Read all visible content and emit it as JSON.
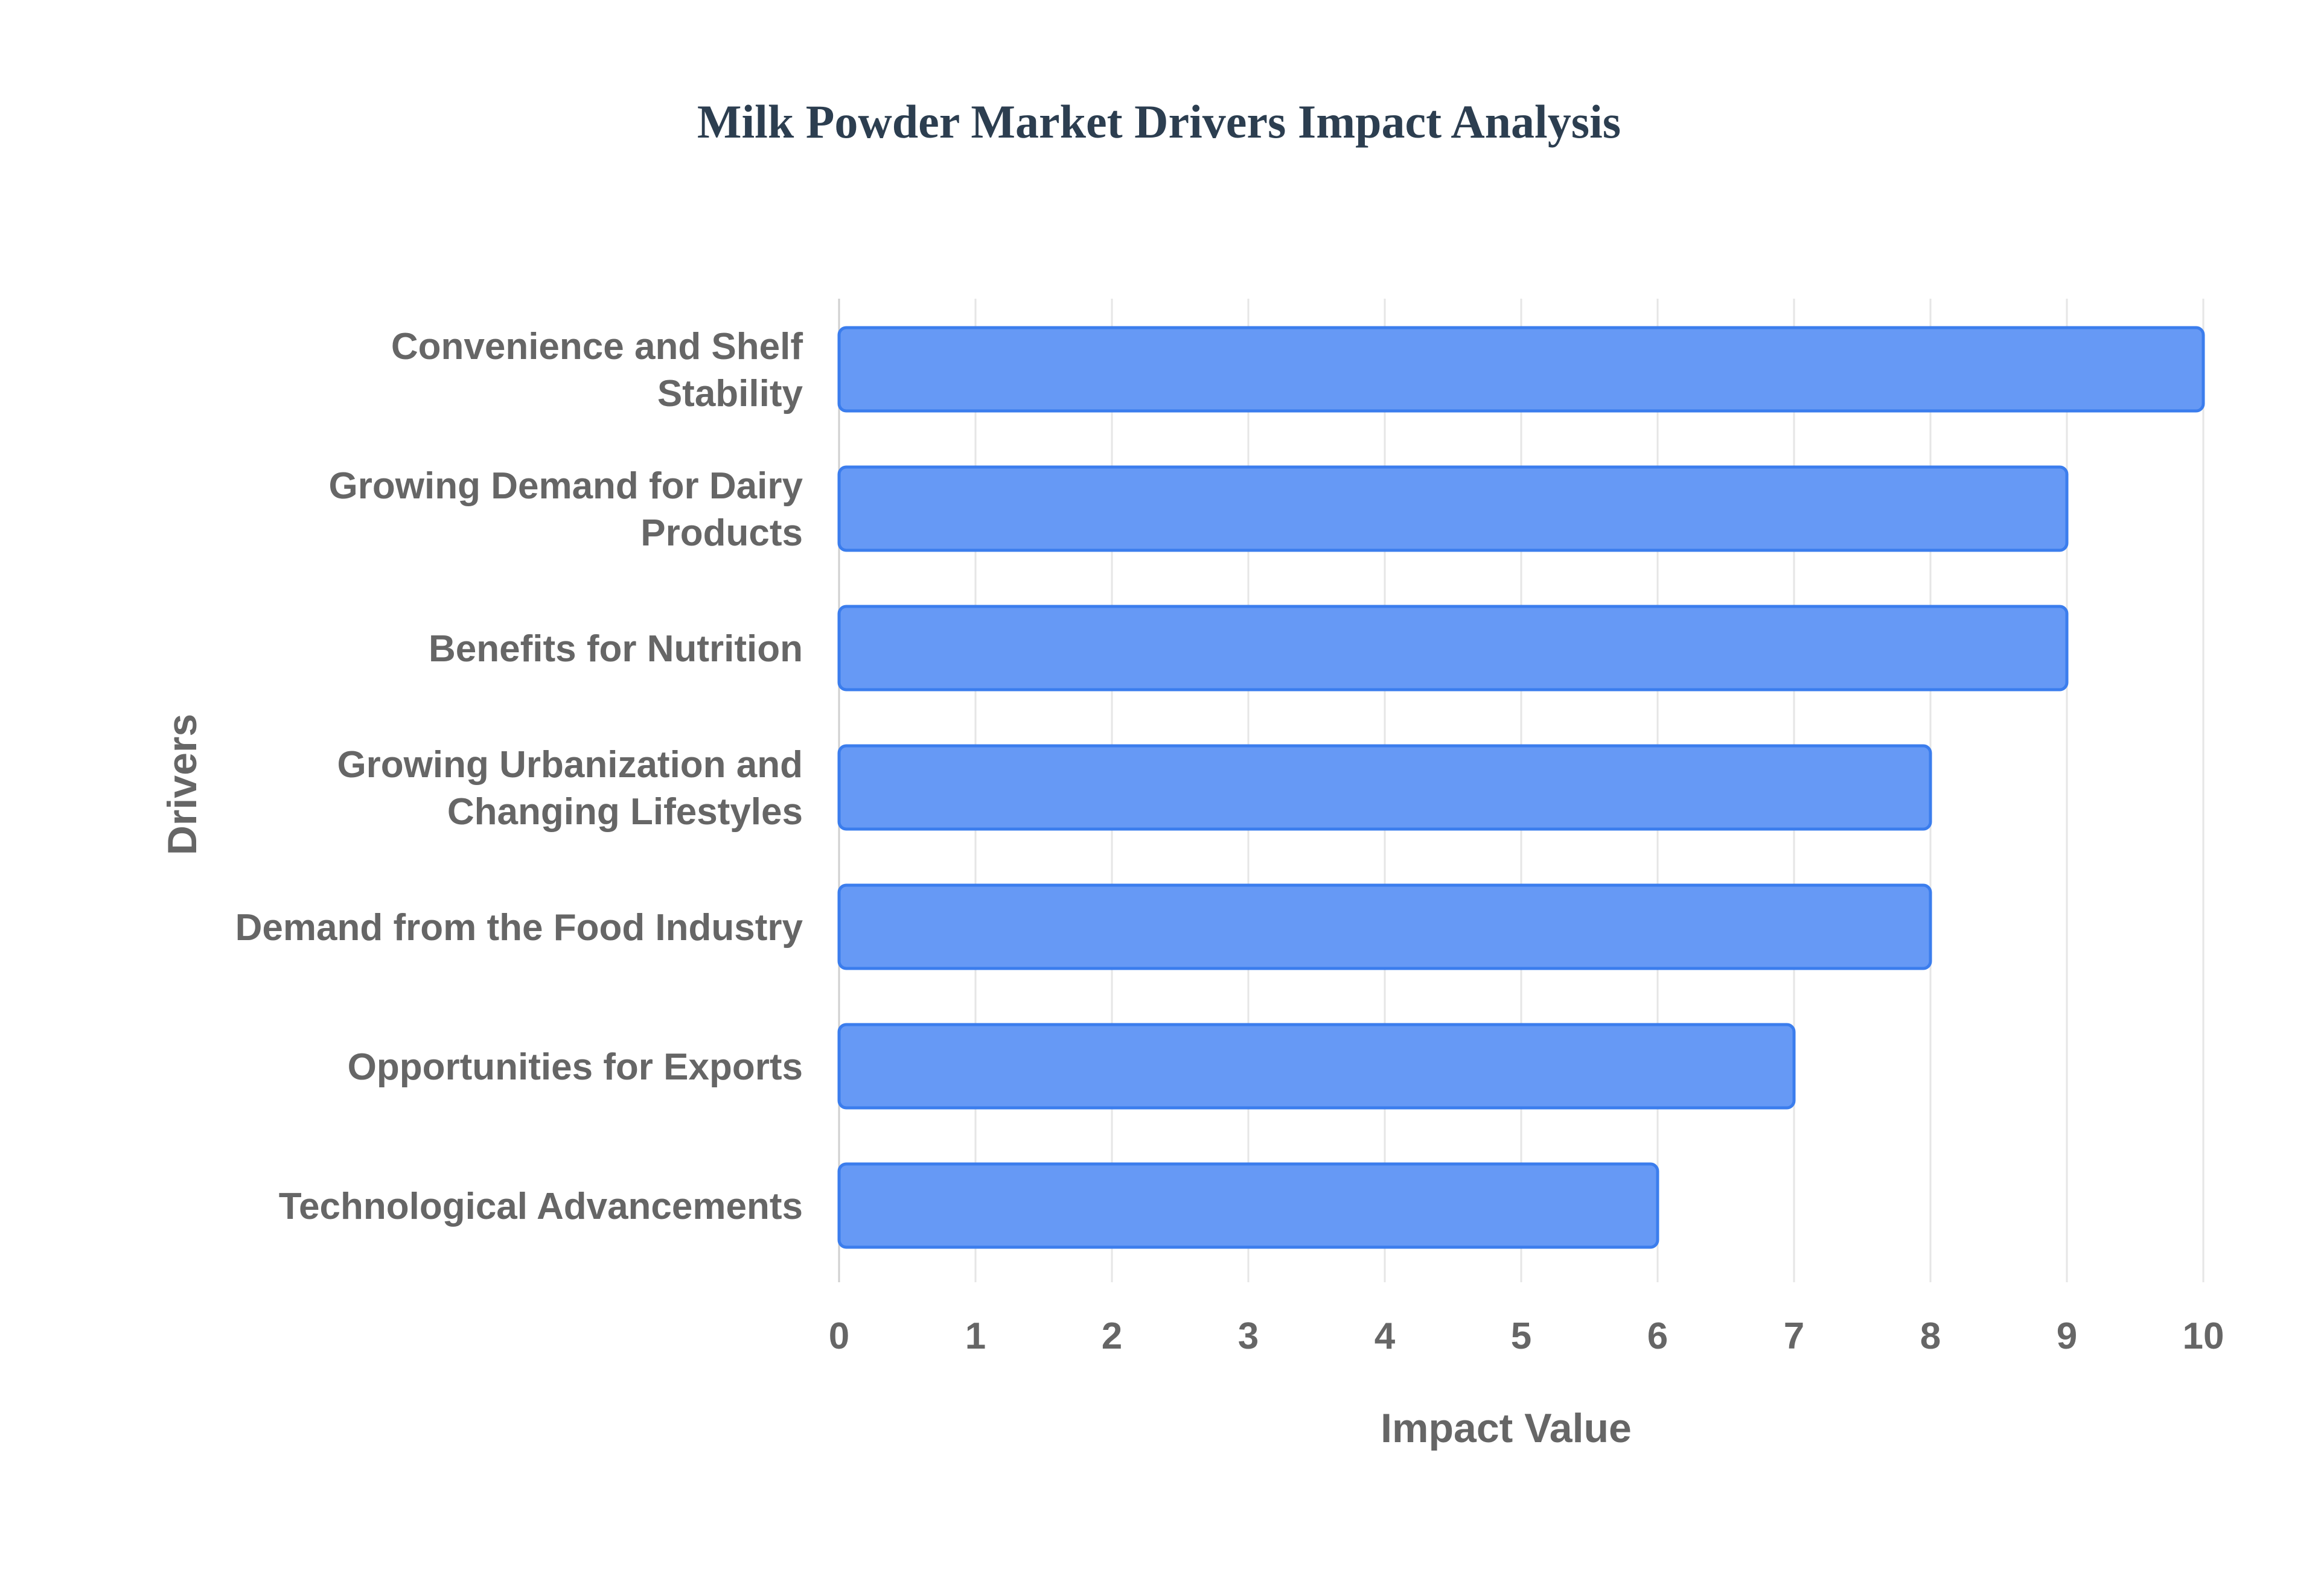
{
  "chart_data": {
    "type": "bar",
    "orientation": "horizontal",
    "title": "Milk Powder Market Drivers Impact Analysis",
    "xlabel": "Impact Value",
    "ylabel": "Drivers",
    "xlim": [
      0,
      10
    ],
    "x_ticks": [
      "0",
      "1",
      "2",
      "3",
      "4",
      "5",
      "6",
      "7",
      "8",
      "9",
      "10"
    ],
    "grid": true,
    "legend": "none",
    "bar_color": "#6699f5",
    "bar_border_color": "#3b7ded",
    "categories": [
      [
        "Convenience and Shelf",
        "Stability"
      ],
      [
        "Growing Demand for Dairy",
        "Products"
      ],
      [
        "Benefits for Nutrition"
      ],
      [
        "Growing Urbanization and",
        "Changing Lifestyles"
      ],
      [
        "Demand from the Food Industry"
      ],
      [
        "Opportunities for Exports"
      ],
      [
        "Technological Advancements"
      ]
    ],
    "values": [
      10,
      9,
      9,
      8,
      8,
      7,
      6
    ]
  }
}
